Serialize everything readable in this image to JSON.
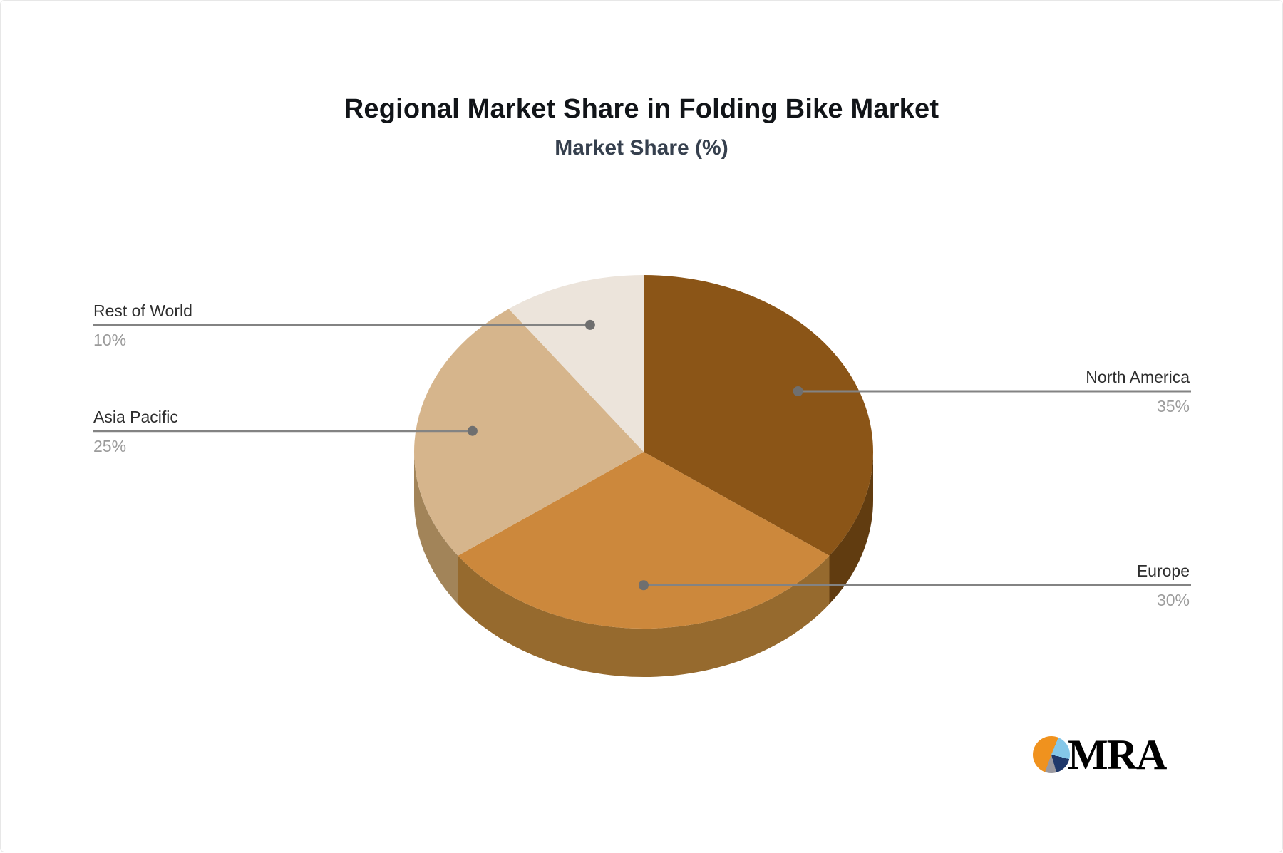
{
  "title": "Regional Market Share in Folding Bike Market",
  "subtitle": "Market Share (%)",
  "chart_data": {
    "type": "pie",
    "title": "Regional Market Share in Folding Bike Market",
    "subtitle": "Market Share (%)",
    "unit": "%",
    "effect": "3d",
    "start_angle_deg": 0,
    "direction": "clockwise",
    "slices": [
      {
        "label": "North America",
        "value": 35,
        "display": "35%",
        "color": "#8B5517",
        "side_color": "#613C10",
        "label_side": "right"
      },
      {
        "label": "Europe",
        "value": 30,
        "display": "30%",
        "color": "#CC883C",
        "side_color": "#966A2E",
        "label_side": "right"
      },
      {
        "label": "Asia Pacific",
        "value": 25,
        "display": "25%",
        "color": "#D6B58C",
        "side_color": "#A28459",
        "label_side": "left"
      },
      {
        "label": "Rest of World",
        "value": 10,
        "display": "10%",
        "color": "#ECE4DB",
        "label_side": "left"
      }
    ],
    "legend_position": "connector-labels",
    "label_name_color": "#2E2E2E",
    "label_value_color": "#9B9B9B",
    "leader_line_color": "#838383",
    "leader_dot_color": "#6F6F6F"
  },
  "logo": {
    "text": "MRA",
    "text_color": "#1B2B5F",
    "pie_colors": [
      "#F0921E",
      "#85C7E8",
      "#20396B",
      "#9A99A0"
    ]
  }
}
